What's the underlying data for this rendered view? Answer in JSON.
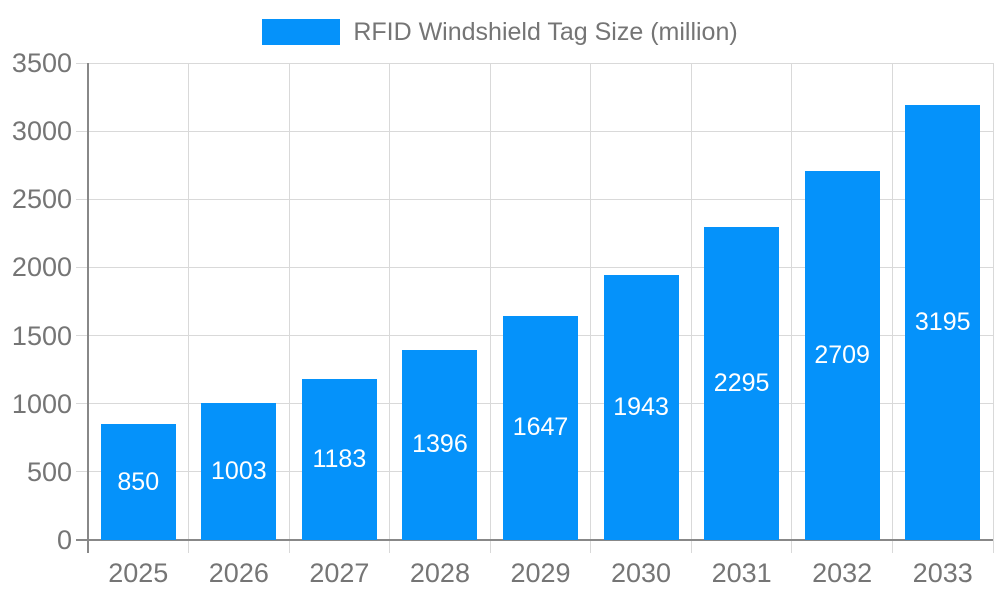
{
  "chart_data": {
    "type": "bar",
    "title": "RFID Windshield Tag Size (million)",
    "categories": [
      "2025",
      "2026",
      "2027",
      "2028",
      "2029",
      "2030",
      "2031",
      "2032",
      "2033"
    ],
    "values": [
      850,
      1003,
      1183,
      1396,
      1647,
      1943,
      2295,
      2709,
      3195
    ],
    "series": [
      {
        "name": "RFID Windshield Tag Size (million)",
        "values": [
          850,
          1003,
          1183,
          1396,
          1647,
          1943,
          2295,
          2709,
          3195
        ]
      }
    ],
    "xlabel": "",
    "ylabel": "",
    "ylim": [
      0,
      3500
    ],
    "ytick_step": 500,
    "yticks": [
      0,
      500,
      1000,
      1500,
      2000,
      2500,
      3000,
      3500
    ],
    "grid": true,
    "legend_position": "top-center",
    "value_labels": "centered-inside-bars"
  },
  "colors": {
    "bar": "#0592fa",
    "grid": "#d9d9d9",
    "axis": "#888888",
    "text": "#757575",
    "value_label": "#ffffff",
    "background": "#ffffff"
  }
}
